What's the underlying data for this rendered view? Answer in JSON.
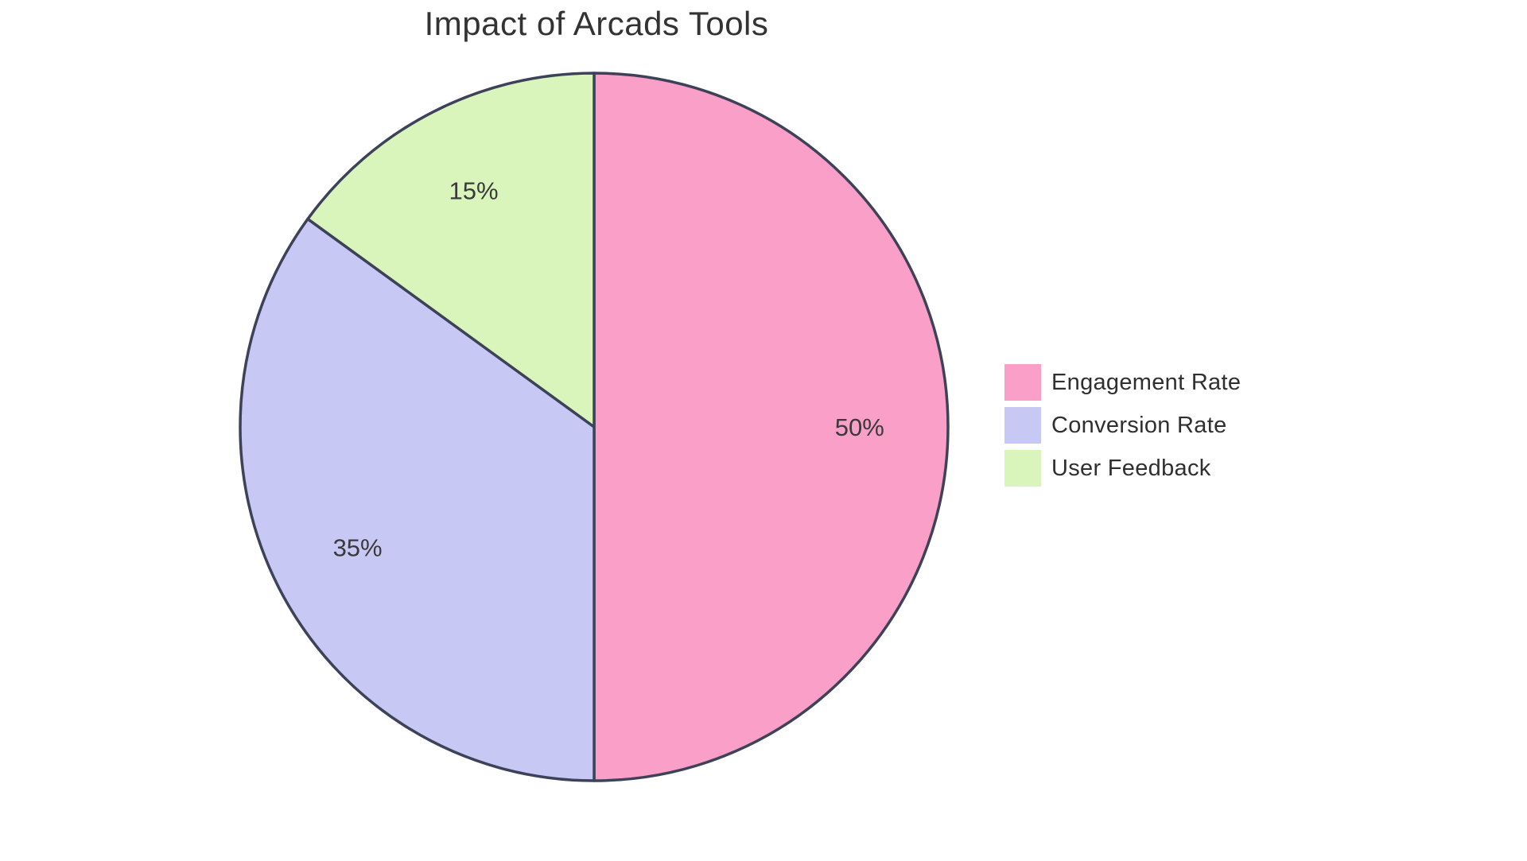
{
  "title": "Impact of Arcads Tools",
  "chart_data": {
    "type": "pie",
    "title": "Impact of Arcads Tools",
    "categories": [
      "Engagement Rate",
      "Conversion Rate",
      "User Feedback"
    ],
    "values": [
      50,
      35,
      15
    ],
    "slice_labels": [
      "50%",
      "35%",
      "15%"
    ],
    "unit": "%",
    "colors": [
      "#FA9FC8",
      "#C7C9F4",
      "#D9F5BB"
    ],
    "border_color": "#3E4259",
    "slice_label_color": "#3A3A3A",
    "title_color": "#333333",
    "legend_text_color": "#2F2F2F",
    "legend_position": "right",
    "start_angle_deg": -90,
    "direction": "clockwise"
  },
  "legend": {
    "items": [
      {
        "label": "Engagement Rate",
        "color": "#FA9FC8"
      },
      {
        "label": "Conversion Rate",
        "color": "#C7C9F4"
      },
      {
        "label": "User Feedback",
        "color": "#D9F5BB"
      }
    ]
  }
}
